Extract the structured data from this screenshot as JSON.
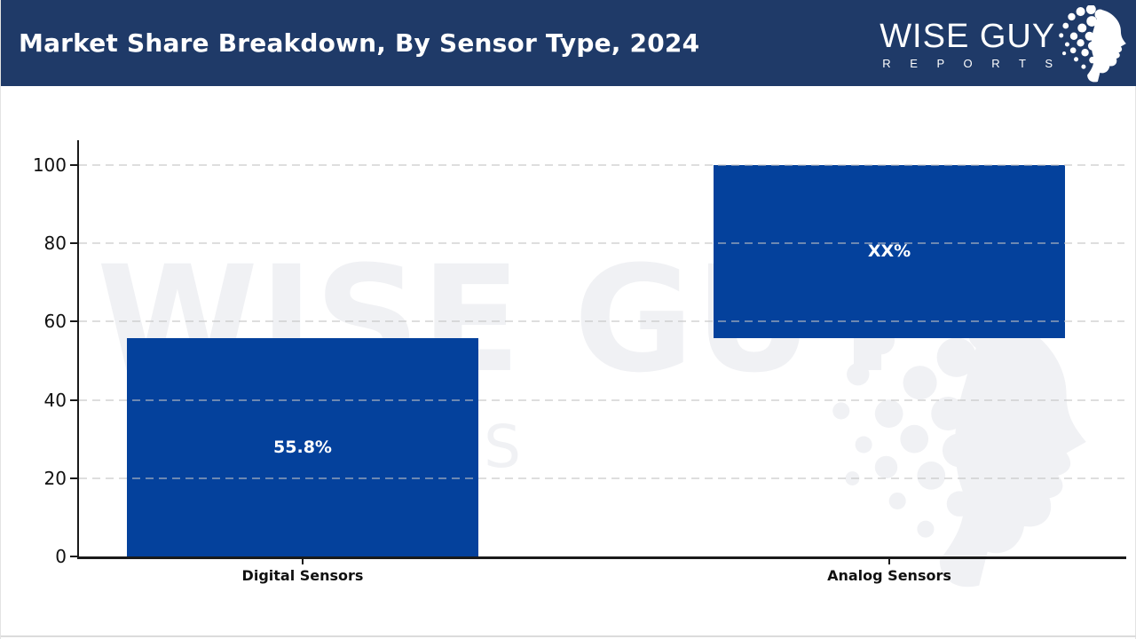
{
  "header": {
    "title": "Market Share Breakdown, By Sensor Type, 2024",
    "logo": {
      "name": "WISE GUY",
      "sub": "R E P O R T S"
    }
  },
  "watermark": {
    "line1": "WISE GUY",
    "line2": "R T S"
  },
  "colors": {
    "header_bg": "#1f3a68",
    "bar": "#04419c",
    "axis": "#1a1a1a",
    "grid": "#dddddd",
    "watermark": "#f0f1f4",
    "bar_label_text": "#ffffff"
  },
  "chart_data": {
    "type": "bar",
    "title": "Market Share Breakdown, By Sensor Type, 2024",
    "categories": [
      "Digital Sensors",
      "Analog Sensors"
    ],
    "yticks": [
      0,
      20,
      40,
      60,
      80,
      100
    ],
    "ylim": [
      0,
      106
    ],
    "grid": "horizontal-dashed",
    "legend": "none",
    "bar_color": "#04419c",
    "bars": [
      {
        "category": "Digital Sensors",
        "label": "55.8%",
        "base": 0,
        "value": 55.8,
        "masked": false
      },
      {
        "category": "Analog Sensors",
        "label": "XX%",
        "base": 55.8,
        "value": 44.2,
        "masked": true
      }
    ]
  }
}
